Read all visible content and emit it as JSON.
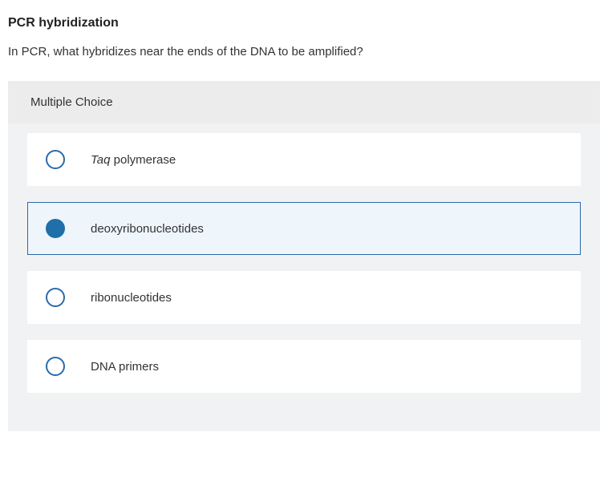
{
  "title": "PCR hybridization",
  "question": "In PCR, what hybridizes near the ends of the DNA to be amplified?",
  "mc_header": "Multiple Choice",
  "options": [
    {
      "label_prefix_italic": "Taq",
      "label_rest": " polymerase",
      "selected": false
    },
    {
      "label_prefix_italic": "",
      "label_rest": "deoxyribonucleotides",
      "selected": true
    },
    {
      "label_prefix_italic": "",
      "label_rest": "ribonucleotides",
      "selected": false
    },
    {
      "label_prefix_italic": "",
      "label_rest": "DNA primers",
      "selected": false
    }
  ],
  "colors": {
    "page_bg": "#ffffff",
    "container_bg": "#f1f2f3",
    "header_bg": "#ececec",
    "option_bg": "#ffffff",
    "selected_bg": "#eef5fb",
    "selected_border": "#2b6aa8",
    "radio_border": "#2b6aa8",
    "radio_fill": "#1f6fa8",
    "text": "#333333"
  }
}
